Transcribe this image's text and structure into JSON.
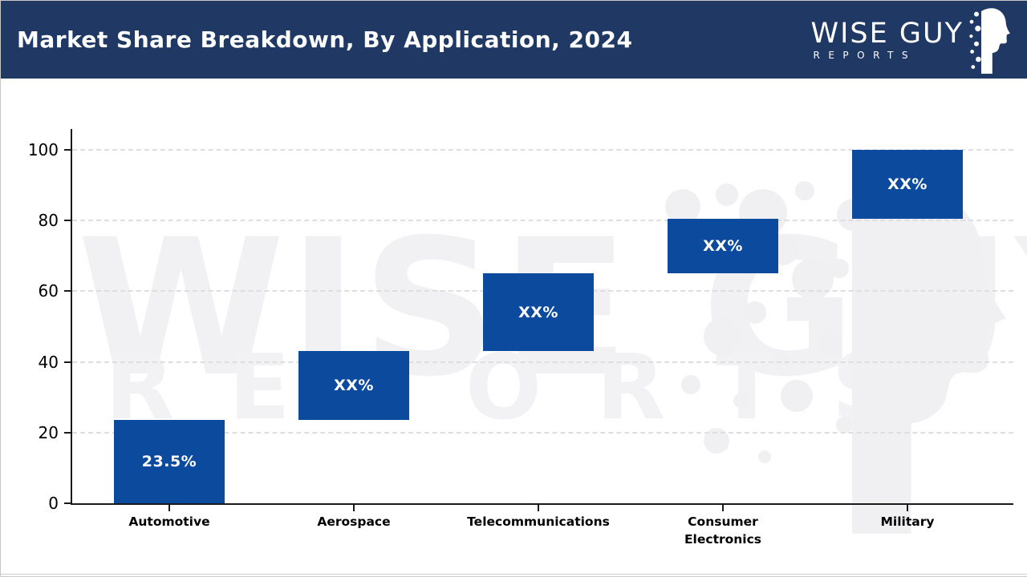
{
  "header": {
    "title": "Market Share Breakdown, By Application, 2024",
    "bg_color": "#1f3864",
    "logo": {
      "line1": "WISE GUY",
      "line2": "REPORTS"
    }
  },
  "watermark": {
    "line1": "WISE GUY",
    "line2": "REPORTS"
  },
  "chart_data": {
    "type": "bar",
    "subtype": "waterfall",
    "title": "Market Share Breakdown, By Application, 2024",
    "xlabel": "",
    "ylabel": "",
    "ylim": [
      0,
      100
    ],
    "yticks": [
      0,
      20,
      40,
      60,
      80,
      100
    ],
    "grid": "horizontal-dashed",
    "legend": "none",
    "bar_color": "#0c4a9e",
    "label_color": "#ffffff",
    "categories": [
      "Automotive",
      "Aerospace",
      "Telecommunications",
      "Consumer\nElectronics",
      "Military"
    ],
    "bars": [
      {
        "category": "Automotive",
        "start": 0,
        "end": 23.5,
        "label": "23.5%"
      },
      {
        "category": "Aerospace",
        "start": 23.5,
        "end": 43,
        "label": "XX%"
      },
      {
        "category": "Telecommunications",
        "start": 43,
        "end": 65,
        "label": "XX%"
      },
      {
        "category": "Consumer\nElectronics",
        "start": 65,
        "end": 80.5,
        "label": "XX%"
      },
      {
        "category": "Military",
        "start": 80.5,
        "end": 100,
        "label": "XX%"
      }
    ]
  }
}
